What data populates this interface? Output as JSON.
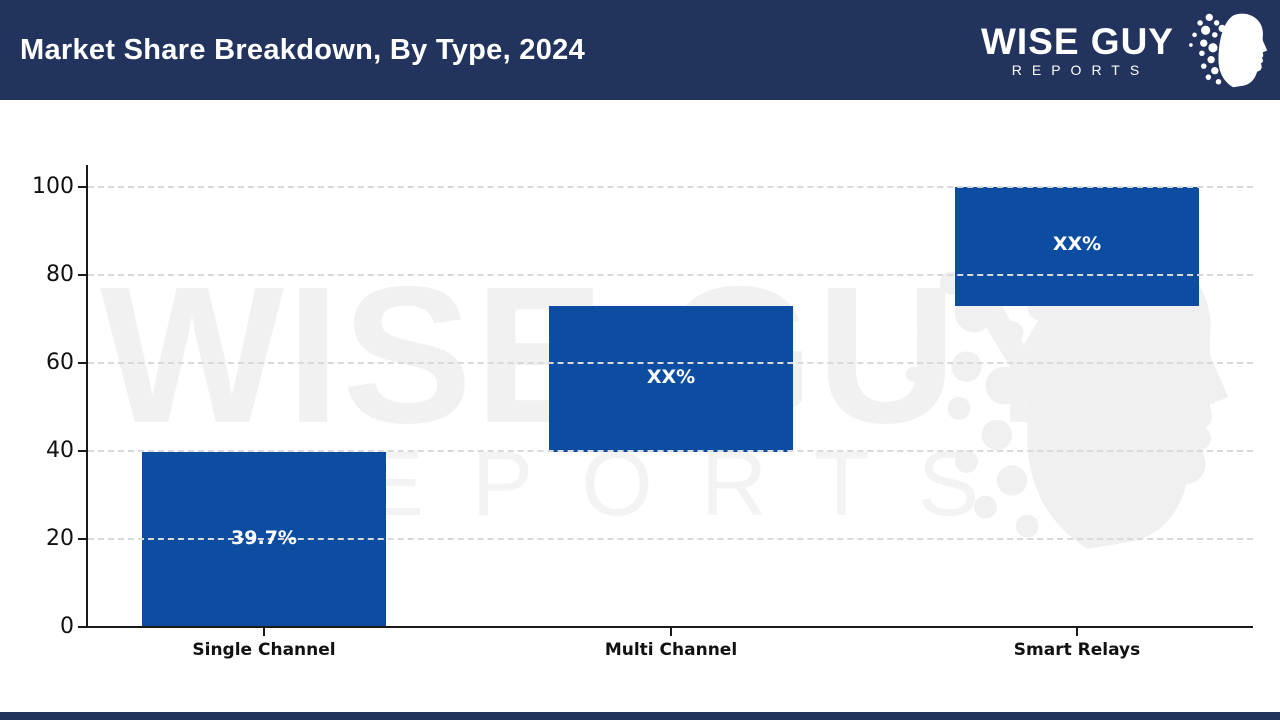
{
  "header": {
    "title": "Market Share Breakdown, By Type, 2024",
    "logo": {
      "brand_top": "WISE GUY",
      "brand_bottom": "REPORTS"
    }
  },
  "watermark": {
    "brand_top": "WISE GUY",
    "brand_bottom": "REPORTS"
  },
  "colors": {
    "header_bg": "#22335D",
    "footer_bg": "#22335D",
    "bar": "#0C4DA2",
    "bar_label": "#FFFFFF",
    "grid": "#D9D9D9",
    "axis": "#1A1A1A",
    "watermark_gray": "#F1F1F1"
  },
  "chart_data": {
    "type": "bar",
    "subtype": "floating_segment_bars",
    "title": "Market Share Breakdown, By Type, 2024",
    "categories": [
      "Single Channel",
      "Multi Channel",
      "Smart Relays"
    ],
    "series": [
      {
        "name": "Market share (%)",
        "segments": [
          {
            "category": "Single Channel",
            "start": 0,
            "end": 39.7,
            "value": 39.7,
            "label": "39.7%"
          },
          {
            "category": "Multi Channel",
            "start": 39.7,
            "end": 73.0,
            "value": 33.3,
            "label": "XX%"
          },
          {
            "category": "Smart Relays",
            "start": 73.0,
            "end": 100.0,
            "value": 27.0,
            "label": "XX%"
          }
        ]
      }
    ],
    "xlabel": "",
    "ylabel": "",
    "y_ticks": [
      0,
      20,
      40,
      60,
      80,
      100
    ],
    "ylim": [
      0,
      105
    ],
    "grid": "horizontal_dashed",
    "legend": "none"
  }
}
